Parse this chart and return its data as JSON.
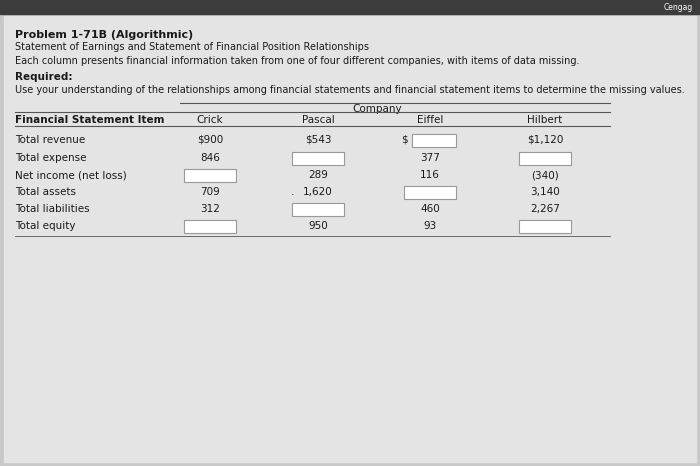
{
  "title_bold": "Problem 1-71B (Algorithmic)",
  "title_sub": "Statement of Earnings and Statement of Financial Position Relationships",
  "para1": "Each column presents financial information taken from one of four different companies, with items of data missing.",
  "required_label": "Required:",
  "para2": "Use your understanding of the relationships among financial statements and financial statement items to determine the missing values.",
  "company_label": "Company",
  "col_headers": [
    "Financial Statement Item",
    "Crick",
    "Pascal",
    "Eiffel",
    "Hilbert"
  ],
  "rows": [
    {
      "label": "Total revenue",
      "crick": "$900",
      "pascal": "$543",
      "eiffel": "box_dollar",
      "hilbert": "$1,120"
    },
    {
      "label": "Total expense",
      "crick": "846",
      "pascal": null,
      "eiffel": "377",
      "hilbert": null
    },
    {
      "label": "Net income (net loss)",
      "crick": null,
      "pascal": "289",
      "eiffel": "116",
      "hilbert": "(340)"
    },
    {
      "label": "Total assets",
      "crick": "709",
      "pascal": "1,620",
      "eiffel": null,
      "hilbert": "3,140"
    },
    {
      "label": "Total liabilities",
      "crick": "312",
      "pascal": null,
      "eiffel": "460",
      "hilbert": "2,267"
    },
    {
      "label": "Total equity",
      "crick": null,
      "pascal": "950",
      "eiffel": "93",
      "hilbert": null
    }
  ],
  "topbar_color": "#3c3c3c",
  "bg_color": "#c8c8c8",
  "content_bg": "#e8e8e8",
  "box_border": "#999999",
  "box_fill": "#ffffff",
  "line_color": "#555555",
  "text_color": "#1a1a1a",
  "topbar_text": "Cengag",
  "dot_col": "pascal",
  "dot_row": 3
}
